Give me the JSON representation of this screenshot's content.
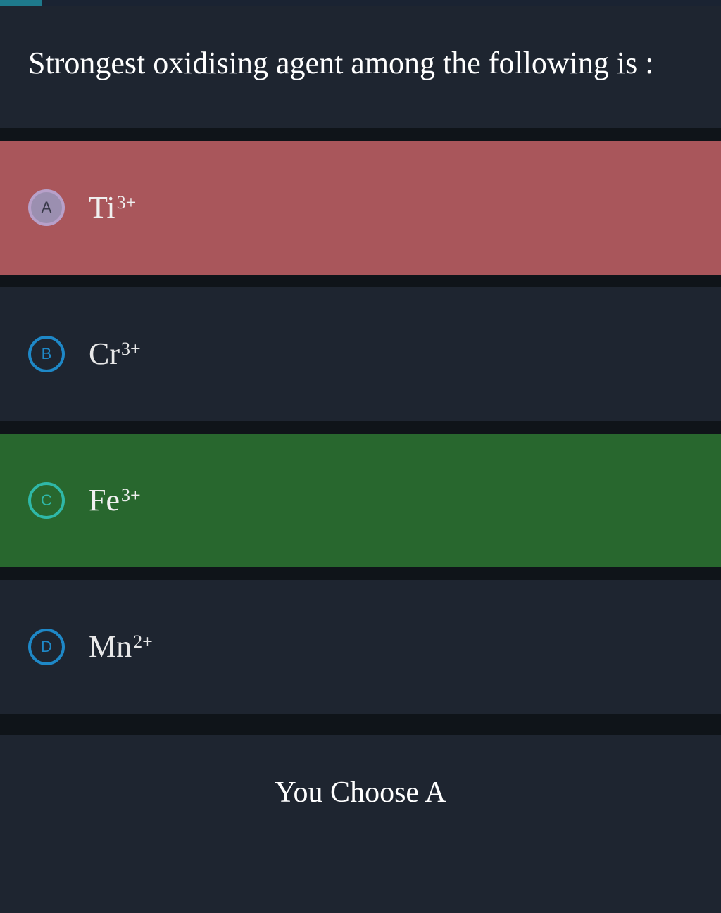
{
  "colors": {
    "page_bg": "#0f1419",
    "panel_bg": "#1e2530",
    "wrong_bg": "#a9565b",
    "correct_bg": "#28672e",
    "badge_blue": "#1e88c7",
    "badge_teal": "#2fb8a8",
    "badge_wrong_border": "#b7a0c9",
    "text": "#e8e8e8"
  },
  "question": {
    "text": "Strongest oxidising agent among the following is :"
  },
  "options": [
    {
      "letter": "A",
      "base": "Ti",
      "sup": "3+",
      "state": "wrong",
      "badge_style": "wrong"
    },
    {
      "letter": "B",
      "base": "Cr",
      "sup": "3+",
      "state": "default",
      "badge_style": "blue"
    },
    {
      "letter": "C",
      "base": "Fe",
      "sup": "3+",
      "state": "correct",
      "badge_style": "teal"
    },
    {
      "letter": "D",
      "base": "Mn",
      "sup": "2+",
      "state": "default",
      "badge_style": "blue"
    }
  ],
  "footer": {
    "text": "You Choose A"
  }
}
